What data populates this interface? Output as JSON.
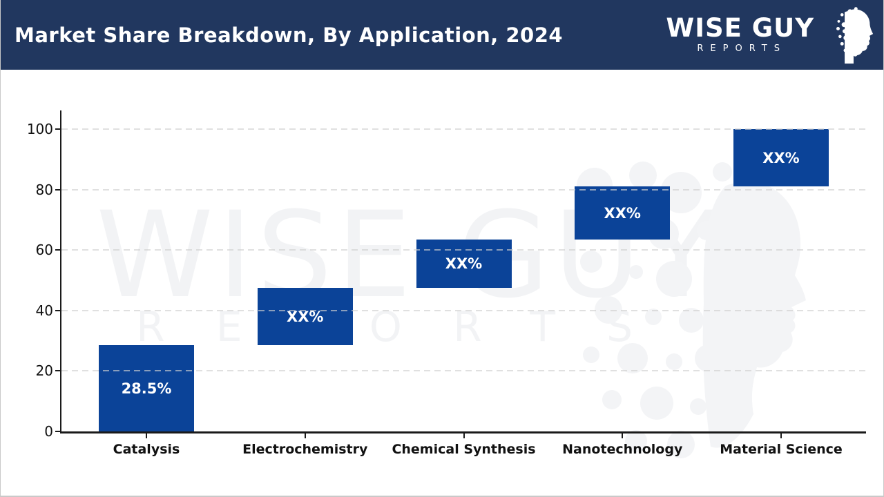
{
  "header": {
    "title": "Market Share Breakdown, By Application, 2024",
    "logo": {
      "line1": "WISE GUY",
      "line2": "REPORTS"
    }
  },
  "watermark": {
    "line1": "WISE GUY",
    "line2": "REPORTS"
  },
  "colors": {
    "header_bg": "#21375f",
    "bar": "#0b4398",
    "bar_label": "#ffffff",
    "axis": "#1a1a1a",
    "gridline": "#d9d9d9",
    "watermark": "#f2f3f5"
  },
  "chart_data": {
    "type": "bar",
    "subtype": "waterfall",
    "title": "Market Share Breakdown, By Application, 2024",
    "xlabel": "",
    "ylabel": "",
    "categories": [
      "Catalysis",
      "Electrochemistry",
      "Chemical Synthesis",
      "Nanotechnology",
      "Material Science"
    ],
    "segments": [
      {
        "category": "Catalysis",
        "start": 0,
        "end": 28.5,
        "value": 28.5,
        "label": "28.5%"
      },
      {
        "category": "Electrochemistry",
        "start": 28.5,
        "end": 47.5,
        "value": 19.0,
        "label": "XX%"
      },
      {
        "category": "Chemical Synthesis",
        "start": 47.5,
        "end": 63.5,
        "value": 16.0,
        "label": "XX%"
      },
      {
        "category": "Nanotechnology",
        "start": 63.5,
        "end": 81.0,
        "value": 17.5,
        "label": "XX%"
      },
      {
        "category": "Material Science",
        "start": 81.0,
        "end": 100.0,
        "value": 19.0,
        "label": "XX%"
      }
    ],
    "yticks": [
      0,
      20,
      40,
      60,
      80,
      100
    ],
    "ylim": [
      0,
      106
    ],
    "grid": "horizontal-dashed",
    "legend": "none"
  }
}
